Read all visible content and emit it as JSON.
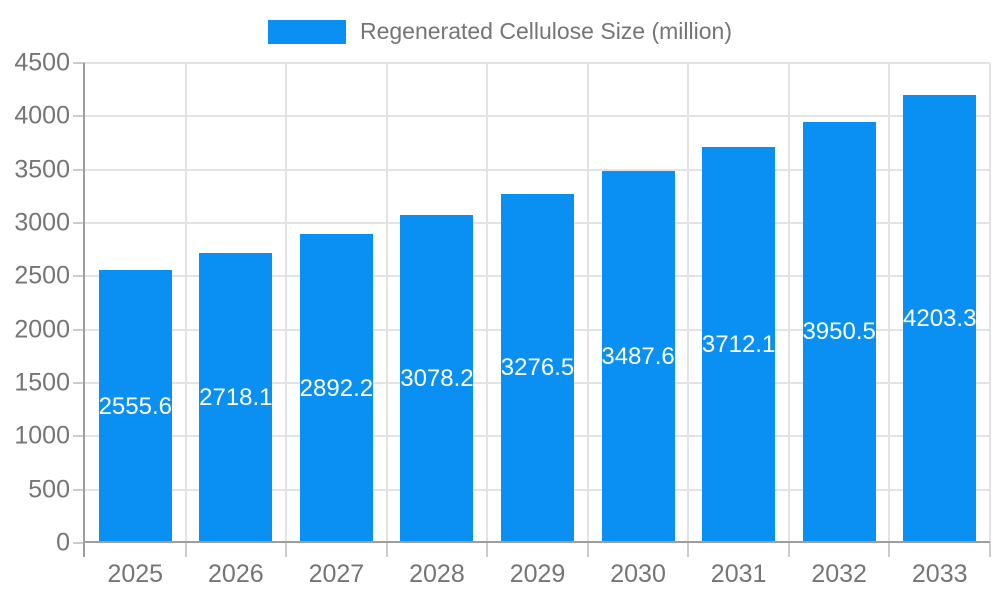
{
  "chart_data": {
    "type": "bar",
    "title": "",
    "legend": "Regenerated Cellulose Size (million)",
    "legend_position": "top",
    "categories": [
      "2025",
      "2026",
      "2027",
      "2028",
      "2029",
      "2030",
      "2031",
      "2032",
      "2033"
    ],
    "values": [
      2555.6,
      2718.1,
      2892.2,
      3078.2,
      3276.5,
      3487.6,
      3712.1,
      3950.5,
      4203.3
    ],
    "value_labels": [
      "2555.6",
      "2718.1",
      "2892.2",
      "3078.2",
      "3276.5",
      "3487.6",
      "3712.1",
      "3950.5",
      "4203.3"
    ],
    "xlabel": "",
    "ylabel": "",
    "ylim": [
      0,
      4500
    ],
    "ytick_step": 500,
    "ytick_labels": [
      "0",
      "500",
      "1000",
      "1500",
      "2000",
      "2500",
      "3000",
      "3500",
      "4000",
      "4500"
    ],
    "grid": true,
    "colors": {
      "bar": "#0a90f2",
      "value_label": "#ffffff",
      "axis_text": "#757575",
      "axis_line": "#9e9e9e",
      "gridline": "#e3e3e3",
      "tick": "#cccccc"
    }
  }
}
